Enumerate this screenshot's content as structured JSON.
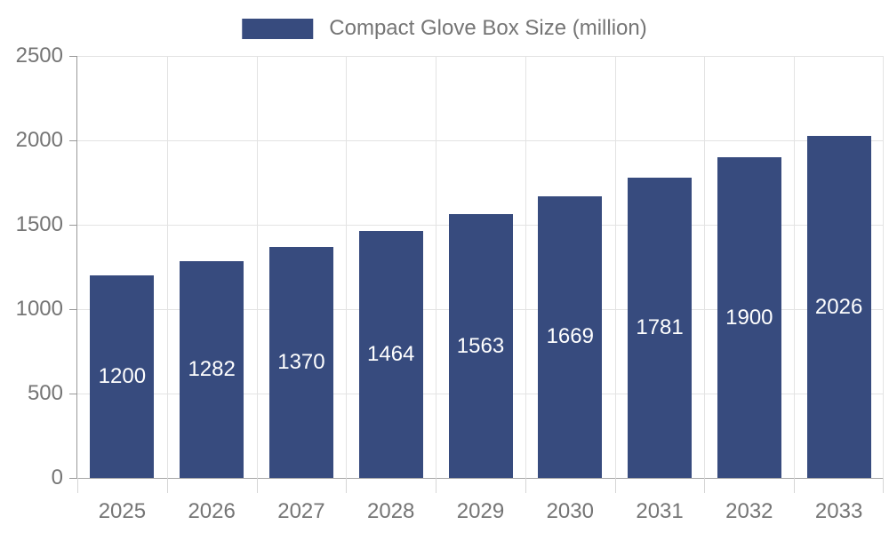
{
  "chart_data": {
    "type": "bar",
    "title": "Compact Glove Box Size (million)",
    "categories": [
      "2025",
      "2026",
      "2027",
      "2028",
      "2029",
      "2030",
      "2031",
      "2032",
      "2033"
    ],
    "series": [
      {
        "name": "Compact Glove Box Size (million)",
        "values": [
          1200,
          1282,
          1370,
          1464,
          1563,
          1669,
          1781,
          1900,
          2026
        ]
      }
    ],
    "xlabel": "",
    "ylabel": "",
    "ylim": [
      0,
      2500
    ],
    "y_ticks": [
      0,
      500,
      1000,
      1500,
      2000,
      2500
    ],
    "grid": "on",
    "legend_position": "top-center",
    "bar_label_position": "inside-center",
    "colors": {
      "bar": "#374B7E",
      "bar_label": "#ffffff",
      "axis_text": "#757575",
      "grid_line": "#e3e3e3",
      "axis_line": "#999999",
      "background": "#ffffff"
    }
  }
}
